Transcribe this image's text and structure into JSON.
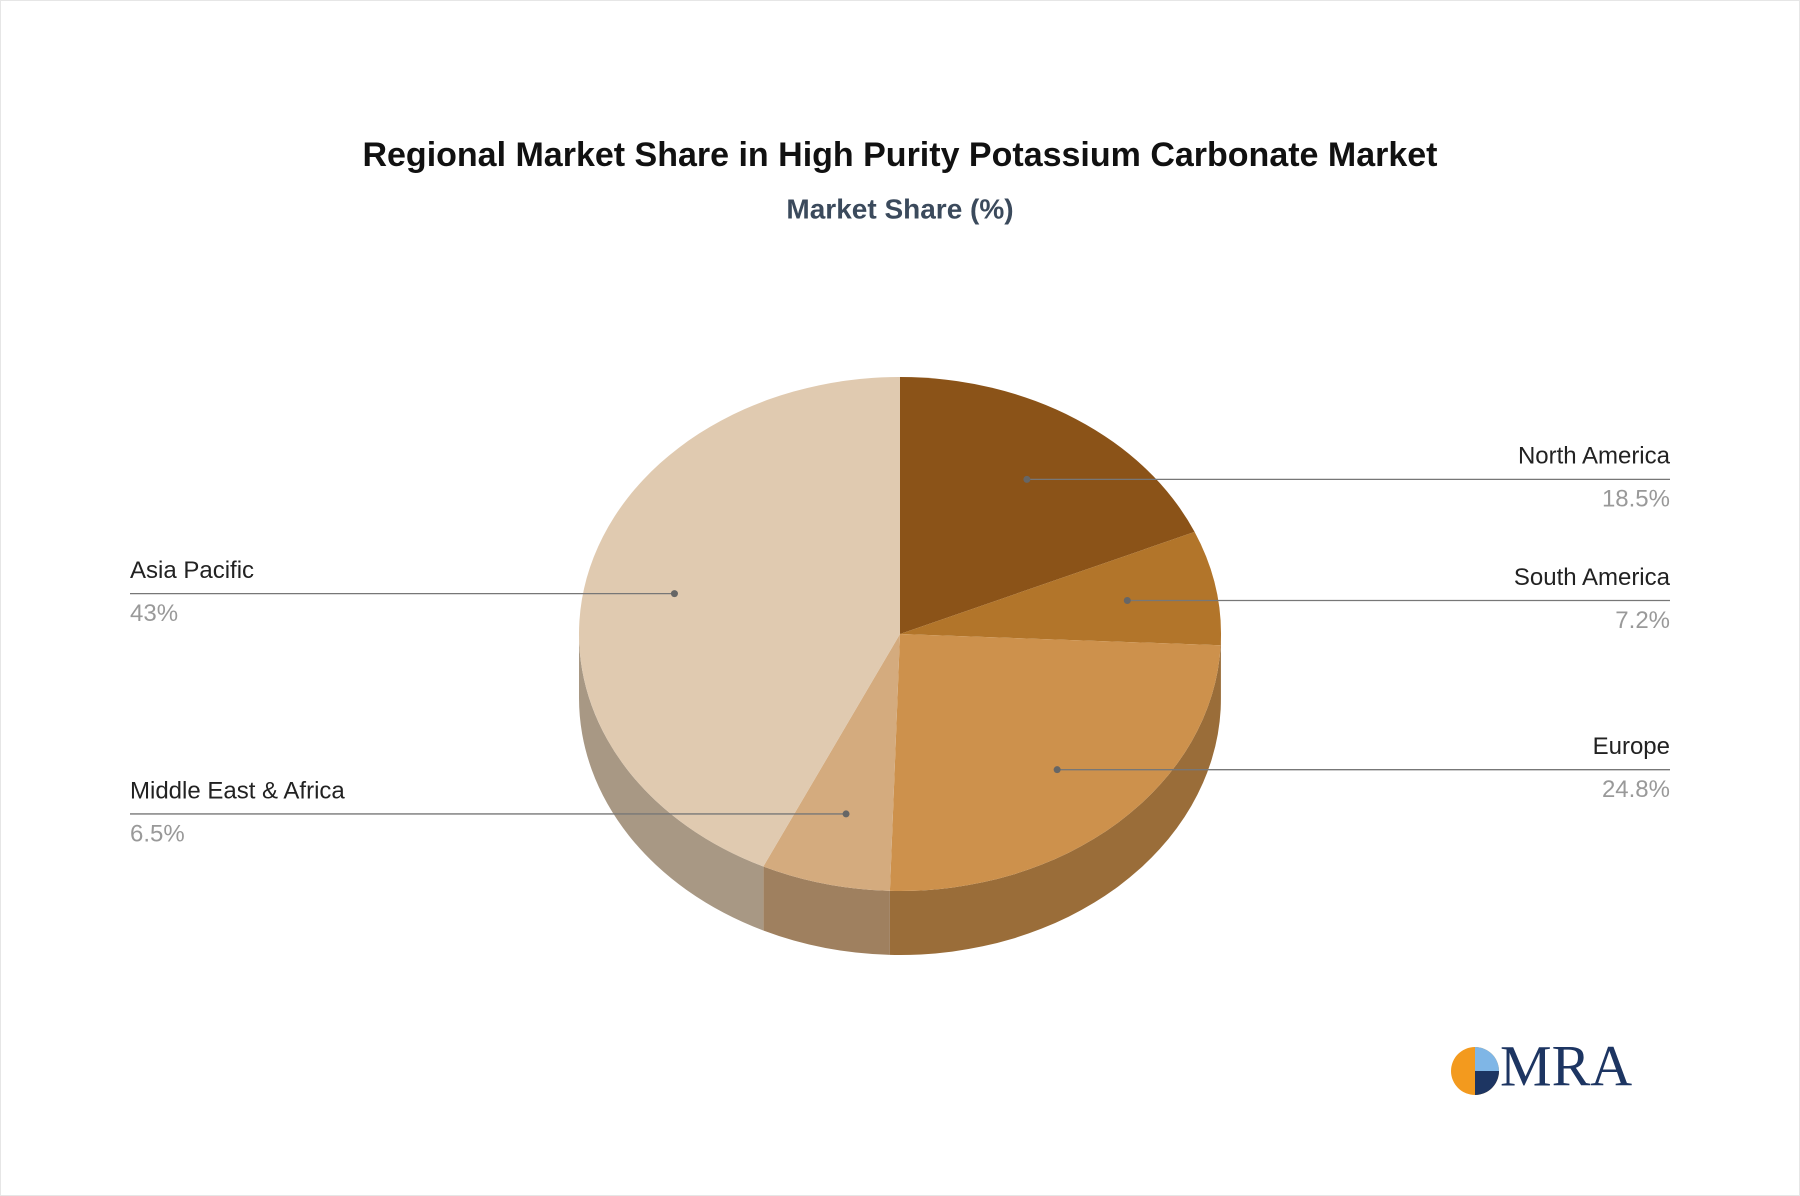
{
  "chart_data": {
    "type": "pie3d",
    "title": "Regional Market Share in High Purity Potassium Carbonate Market",
    "subtitle": "Market Share (%)",
    "categories": [
      "North America",
      "South America",
      "Europe",
      "Middle East & Africa",
      "Asia Pacific"
    ],
    "values": [
      18.5,
      7.2,
      24.8,
      6.5,
      43
    ],
    "value_labels": [
      "18.5%",
      "7.2%",
      "24.8%",
      "6.5%",
      "43%"
    ],
    "colors": [
      "#8b5318",
      "#b2752a",
      "#cd914c",
      "#d4ab7e",
      "#e0cab0"
    ]
  },
  "logo": {
    "text": "MRA"
  }
}
